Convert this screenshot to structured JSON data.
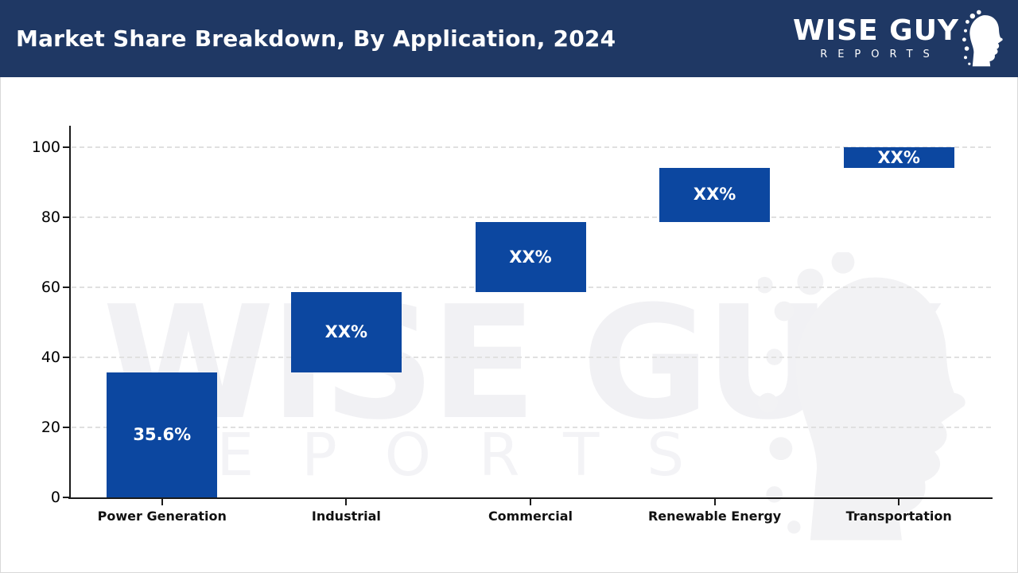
{
  "header": {
    "title": "Market Share Breakdown, By Application, 2024",
    "logo_line1": "WISE GUY",
    "logo_line2": "REPORTS",
    "bg_color": "#1F3864"
  },
  "watermark": {
    "line1": "WISE GUY",
    "line2": "REPORTS"
  },
  "chart_data": {
    "type": "bar",
    "subtype": "floating-waterfall",
    "title": "Market Share Breakdown, By Application, 2024",
    "categories": [
      "Power Generation",
      "Industrial",
      "Commercial",
      "Renewable Energy",
      "Transportation"
    ],
    "segments": [
      {
        "category": "Power Generation",
        "start": 0,
        "end": 35.6,
        "label": "35.6%"
      },
      {
        "category": "Industrial",
        "start": 35.6,
        "end": 58.6,
        "label": "XX%"
      },
      {
        "category": "Commercial",
        "start": 58.6,
        "end": 78.6,
        "label": "XX%"
      },
      {
        "category": "Renewable Energy",
        "start": 78.6,
        "end": 94.0,
        "label": "XX%"
      },
      {
        "category": "Transportation",
        "start": 94.0,
        "end": 100.0,
        "label": "XX%"
      }
    ],
    "ylabel": "",
    "xlabel": "",
    "ylim": [
      0,
      100
    ],
    "yticks": [
      0,
      20,
      40,
      60,
      80,
      100
    ],
    "grid": "horizontal-dashed",
    "legend": "none",
    "bar_color": "#0C47A0",
    "bar_label_color": "#ffffff",
    "axis_color": "#1a1a1a",
    "gridline_color": "#e0e0e0"
  }
}
